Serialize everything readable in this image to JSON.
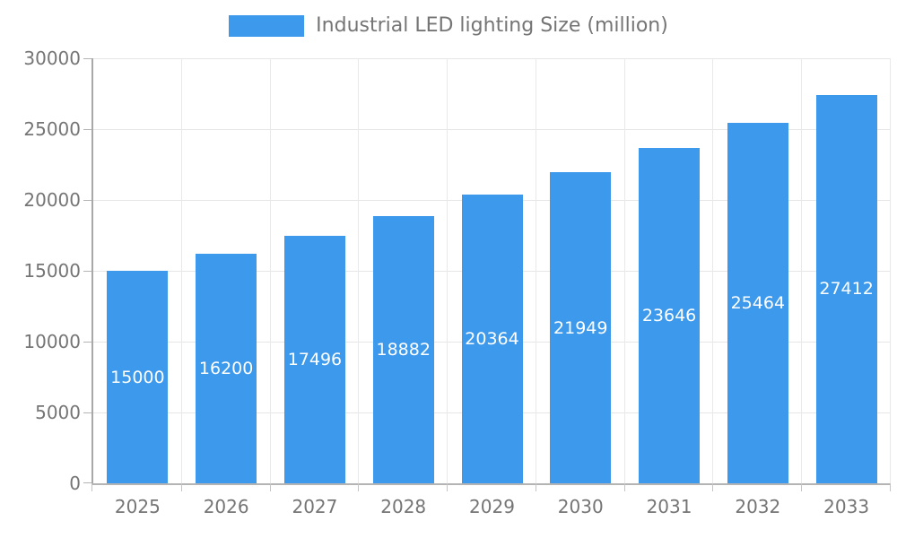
{
  "chart_data": {
    "type": "bar",
    "title": "",
    "legend": {
      "label": "Industrial LED lighting Size (million)",
      "position": "top-center"
    },
    "categories": [
      "2025",
      "2026",
      "2027",
      "2028",
      "2029",
      "2030",
      "2031",
      "2032",
      "2033"
    ],
    "series": [
      {
        "name": "Industrial LED lighting Size (million)",
        "values": [
          15000,
          16200,
          17496,
          18882,
          20364,
          21949,
          23646,
          25464,
          27412
        ]
      }
    ],
    "value_labels": [
      "15000",
      "16200",
      "17496",
      "18882",
      "20364",
      "21949",
      "23646",
      "25464",
      "27412"
    ],
    "value_label_position": "inside-center",
    "xlabel": "",
    "ylabel": "",
    "ylim": [
      0,
      30000
    ],
    "yticks": [
      0,
      5000,
      10000,
      15000,
      20000,
      25000,
      30000
    ],
    "grid": "horizontal-and-vertical"
  },
  "colors": {
    "bar": "#3d99ec",
    "bar_label_text": "#ffffff",
    "axis_text": "#757575",
    "gridline": "#e6e6e6",
    "axis_line": "#a8a8a8",
    "background": "#ffffff"
  }
}
